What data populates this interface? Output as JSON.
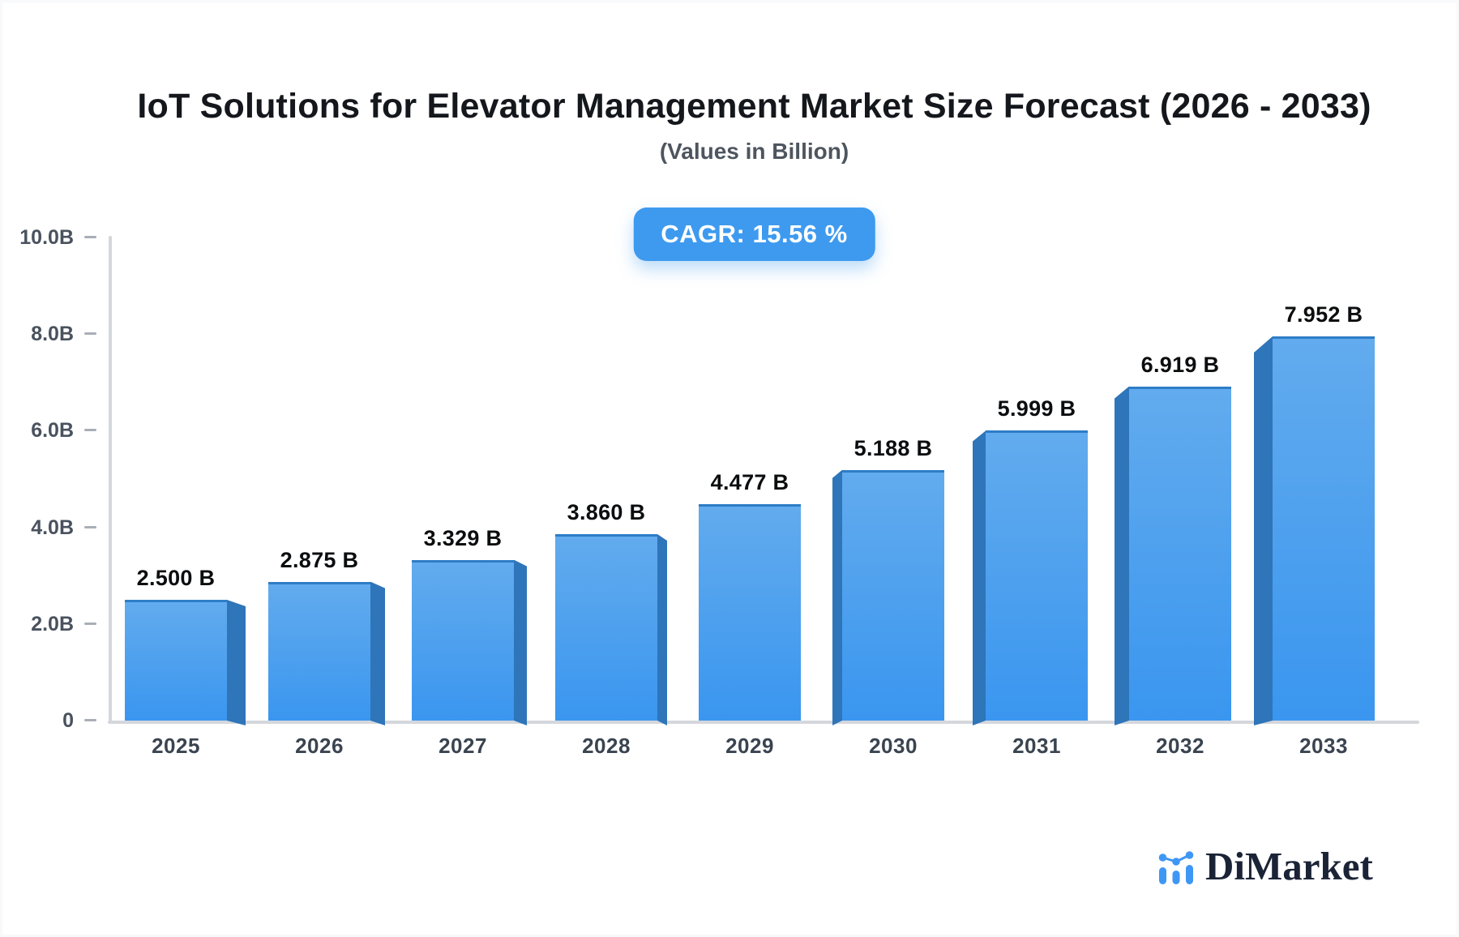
{
  "header": {
    "title": "IoT Solutions for Elevator Management Market Size Forecast (2026 - 2033)",
    "subtitle": "(Values in Billion)",
    "cagr_label": "CAGR: 15.56 %"
  },
  "branding": {
    "name": "DiMarket",
    "icon": "dimarket-mini-chart-icon"
  },
  "colors": {
    "bar_face_top": "#62abee",
    "bar_face_bottom": "#3a96ef",
    "bar_side": "#2e75b9",
    "bar_top_stroke": "#2e7dc7",
    "badge_bg": "#3e9aef",
    "axis_line": "#d4d7dc",
    "tick_dash": "#a9aeb6",
    "axis_label": "#49525e",
    "value_label": "#0b0d0f",
    "brand_blue": "#3f97f5",
    "brand_navy": "#1b2436"
  },
  "chart_data": {
    "type": "bar",
    "title": "IoT Solutions for Elevator Management Market Size Forecast (2026 - 2033)",
    "subtitle": "(Values in Billion)",
    "cagr_pct": 15.56,
    "unit": "Billion",
    "categories": [
      "2025",
      "2026",
      "2027",
      "2028",
      "2029",
      "2030",
      "2031",
      "2032",
      "2033"
    ],
    "values": [
      2.5,
      2.875,
      3.329,
      3.86,
      4.477,
      5.188,
      5.999,
      6.919,
      7.952
    ],
    "value_labels": [
      "2.500 B",
      "2.875 B",
      "3.329 B",
      "3.860 B",
      "4.477 B",
      "5.188 B",
      "5.999 B",
      "6.919 B",
      "7.952 B"
    ],
    "y_ticks": [
      10,
      8,
      6,
      4,
      2,
      0
    ],
    "y_tick_labels": [
      "10.0B",
      "8.0B",
      "6.0B",
      "4.0B",
      "2.0B",
      "0"
    ],
    "ylim": [
      0,
      10
    ],
    "grid": false,
    "legend": "none",
    "style": "3d-extruded-bars, perspective vanishing point at chart center"
  }
}
